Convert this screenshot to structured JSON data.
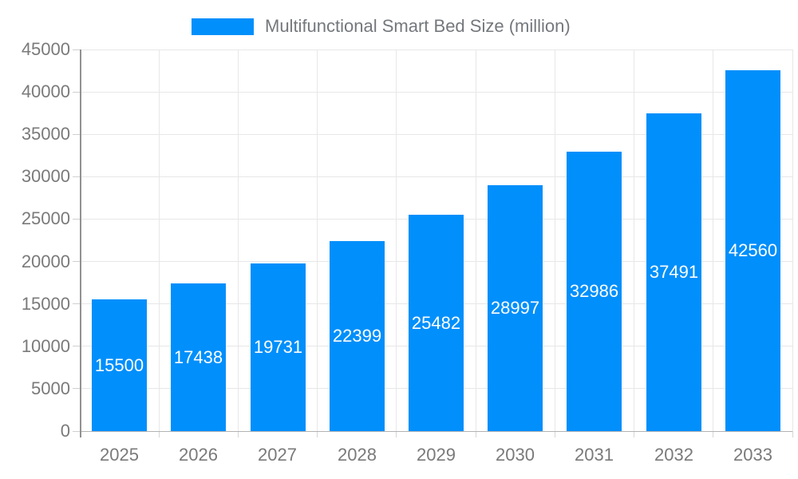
{
  "chart_data": {
    "type": "bar",
    "title": "Multifunctional Smart Bed Size (million)",
    "categories": [
      "2025",
      "2026",
      "2027",
      "2028",
      "2029",
      "2030",
      "2031",
      "2032",
      "2033"
    ],
    "values": [
      15500,
      17438,
      19731,
      22399,
      25482,
      28997,
      32986,
      37491,
      42560
    ],
    "xlabel": "",
    "ylabel": "",
    "ylim": [
      0,
      45000
    ],
    "ytick_step": 5000,
    "grid": true,
    "legend_position": "top",
    "value_labels": "inside-center"
  },
  "legend": {
    "label": "Multifunctional Smart Bed Size (million)"
  },
  "colors": {
    "bar": "#008FFB",
    "grid": "#e7e7e7",
    "axis_line": "#919191",
    "baseline": "#b2b2b2",
    "axis_text": "#7a7a7a",
    "legend_text": "#74787c",
    "bar_label_text": "#ffffff"
  }
}
